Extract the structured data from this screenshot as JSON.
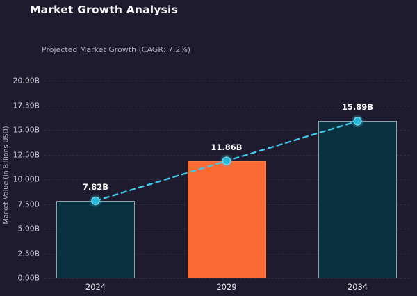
{
  "header": {
    "title": "Market Growth Analysis",
    "subtitle": "Projected Market Growth (CAGR: 7.2%)"
  },
  "chart_data": {
    "type": "bar",
    "title": "Market Growth Analysis",
    "subtitle": "Projected Market Growth (CAGR: 7.2%)",
    "categories": [
      "2024",
      "2029",
      "2034"
    ],
    "values": [
      7.82,
      11.86,
      15.89
    ],
    "value_labels": [
      "7.82B",
      "11.86B",
      "15.89B"
    ],
    "xlabel": "",
    "ylabel": "Market Value (in Billions USD)",
    "ylim": [
      0,
      20
    ],
    "yticks": [
      0,
      2.5,
      5,
      7.5,
      10,
      12.5,
      15,
      17.5,
      20
    ],
    "ytick_labels": [
      "0.00B",
      "2.50B",
      "5.00B",
      "7.50B",
      "10.00B",
      "12.50B",
      "15.00B",
      "17.50B",
      "20.00B"
    ],
    "grid": true,
    "legend": "none",
    "overlay_line": {
      "type": "line",
      "style": "dashed",
      "connects": "bar-top markers",
      "annotation": "CAGR: 7.2%"
    },
    "colors": {
      "background": "#1e1b2e",
      "bar_fills": [
        "#0a3140",
        "#fb6a35",
        "#0a3140"
      ],
      "bar_borders": [
        "#8ba0aa",
        "#fc7b4a",
        "#8ba0aa"
      ],
      "trend_line": "#41c6e6",
      "marker_fill": "#25b8d8",
      "marker_rim": "#6fd8ee",
      "title_text": "#f4f4f6",
      "subtitle_text": "#a6a9b4",
      "tick_text": "#ccd0d8"
    }
  }
}
